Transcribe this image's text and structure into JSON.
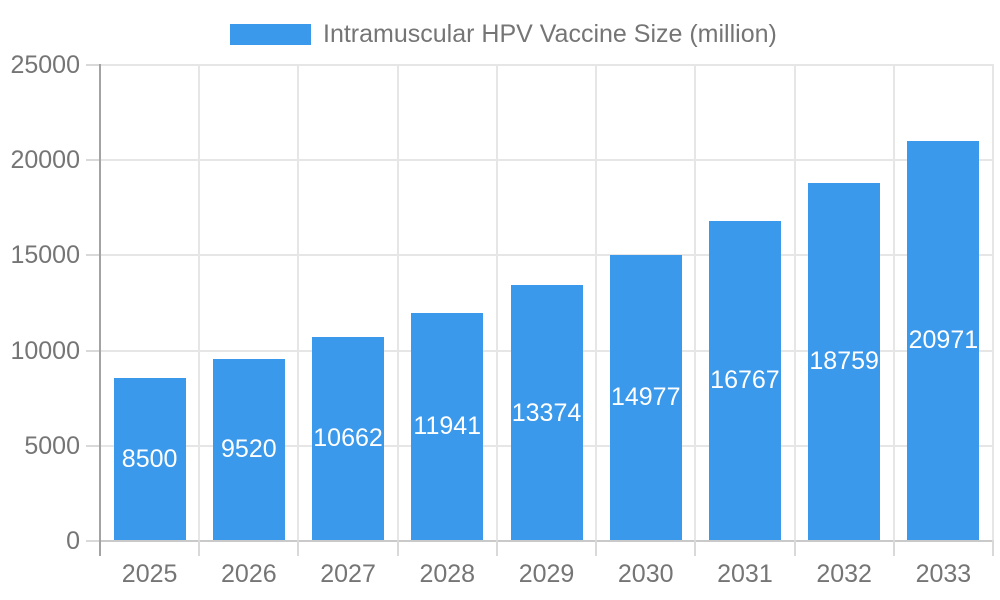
{
  "chart_data": {
    "type": "bar",
    "title": "",
    "legend_label": "Intramuscular HPV Vaccine Size (million)",
    "legend_position": "top",
    "categories": [
      "2025",
      "2026",
      "2027",
      "2028",
      "2029",
      "2030",
      "2031",
      "2032",
      "2033"
    ],
    "values": [
      8500,
      9520,
      10662,
      11941,
      13374,
      14977,
      16767,
      18759,
      20971
    ],
    "xlabel": "",
    "ylabel": "",
    "ylim": [
      0,
      25000
    ],
    "yticks": [
      0,
      5000,
      10000,
      15000,
      20000,
      25000
    ],
    "grid": true,
    "value_label_position": "inside-center",
    "colors": {
      "bar": "#3B99EC",
      "axis_text": "#757575",
      "value_text": "#FFFFFF",
      "gridline": "#E6E6E6",
      "baseline": "#C9C9C9",
      "y_axis_line": "#A3A3A3",
      "tick": "#D9D9D9",
      "background": "#FFFFFF"
    }
  }
}
